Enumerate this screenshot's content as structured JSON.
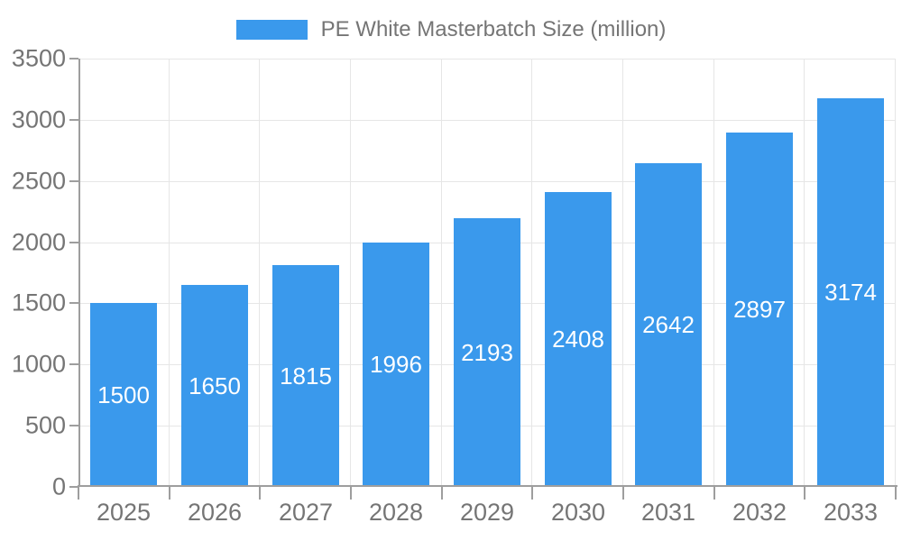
{
  "chart_data": {
    "type": "bar",
    "title": "PE White Masterbatch Size (million)",
    "categories": [
      "2025",
      "2026",
      "2027",
      "2028",
      "2029",
      "2030",
      "2031",
      "2032",
      "2033"
    ],
    "values": [
      1500,
      1650,
      1815,
      1996,
      2193,
      2408,
      2642,
      2897,
      3174
    ],
    "series": [
      {
        "name": "PE White Masterbatch Size (million)",
        "values": [
          1500,
          1650,
          1815,
          1996,
          2193,
          2408,
          2642,
          2897,
          3174
        ]
      }
    ],
    "xlabel": "",
    "ylabel": "",
    "ylim": [
      0,
      3500
    ],
    "yticks": [
      0,
      500,
      1000,
      1500,
      2000,
      2500,
      3000,
      3500
    ],
    "grid": true,
    "legend_position": "top",
    "bar_color": "#3a99ec",
    "bar_label_color": "#ffffff",
    "grid_color": "#e6e6e6",
    "axis_color": "#9e9e9e",
    "tick_text_color": "#757575",
    "legend_text_color": "#757575",
    "background_color": "#ffffff"
  }
}
